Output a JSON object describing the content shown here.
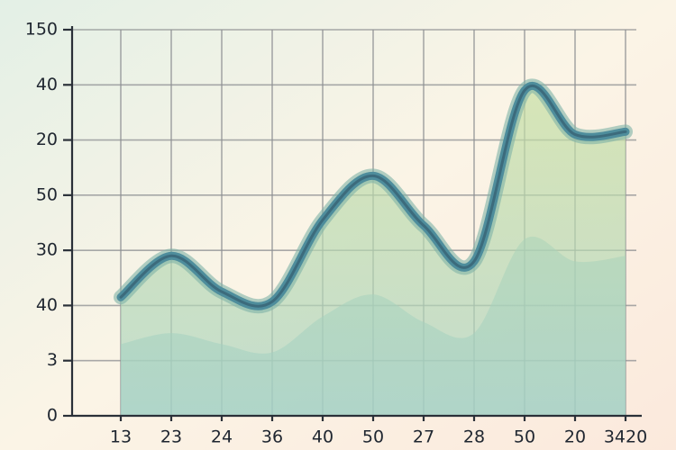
{
  "chart_data": {
    "type": "line",
    "categories": [
      "13",
      "23",
      "24",
      "36",
      "40",
      "50",
      "27",
      "28",
      "50",
      "20",
      "3420"
    ],
    "series": [
      {
        "color": "#4e8d9c",
        "values": [
          2.15,
          2.9,
          2.25,
          2.07,
          3.55,
          4.35,
          3.45,
          2.8,
          5.9,
          5.1,
          5.15
        ]
      },
      {
        "color": "#8cc6c8",
        "values": [
          1.3,
          1.5,
          1.3,
          1.15,
          1.8,
          2.2,
          1.7,
          1.5,
          3.2,
          2.8,
          2.9
        ]
      }
    ],
    "ylim": [
      0,
      7
    ],
    "yticks": [
      0,
      {
        "value": 1,
        "label": "3"
      },
      {
        "value": 2,
        "label": "40"
      },
      {
        "value": 3,
        "label": "30"
      },
      {
        "value": 4,
        "label": "50"
      },
      {
        "value": 5,
        "label": "20"
      },
      {
        "value": 6,
        "label": "40"
      },
      {
        "value": 7,
        "label": "150"
      }
    ],
    "grid": true
  }
}
